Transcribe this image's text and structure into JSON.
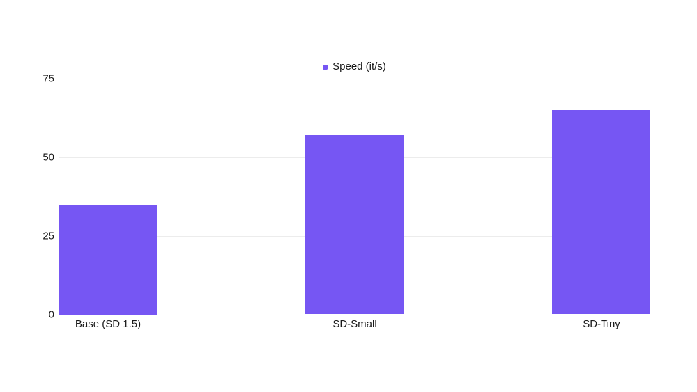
{
  "chart_data": {
    "type": "bar",
    "title": "",
    "categories": [
      "Base (SD 1.5)",
      "SD-Small",
      "SD-Tiny"
    ],
    "series": [
      {
        "name": "Speed (it/s)",
        "values": [
          35,
          57,
          65
        ],
        "color": "#7656F3"
      }
    ],
    "xlabel": "",
    "ylabel": "",
    "ylim": [
      0,
      75
    ],
    "yticks": [
      0,
      25,
      50,
      75
    ],
    "grid": true,
    "legend_position": "top-center"
  },
  "colors": {
    "accent": "#7656F3",
    "gridline": "#ececec",
    "text": "#1a1a1a",
    "background": "#ffffff"
  }
}
